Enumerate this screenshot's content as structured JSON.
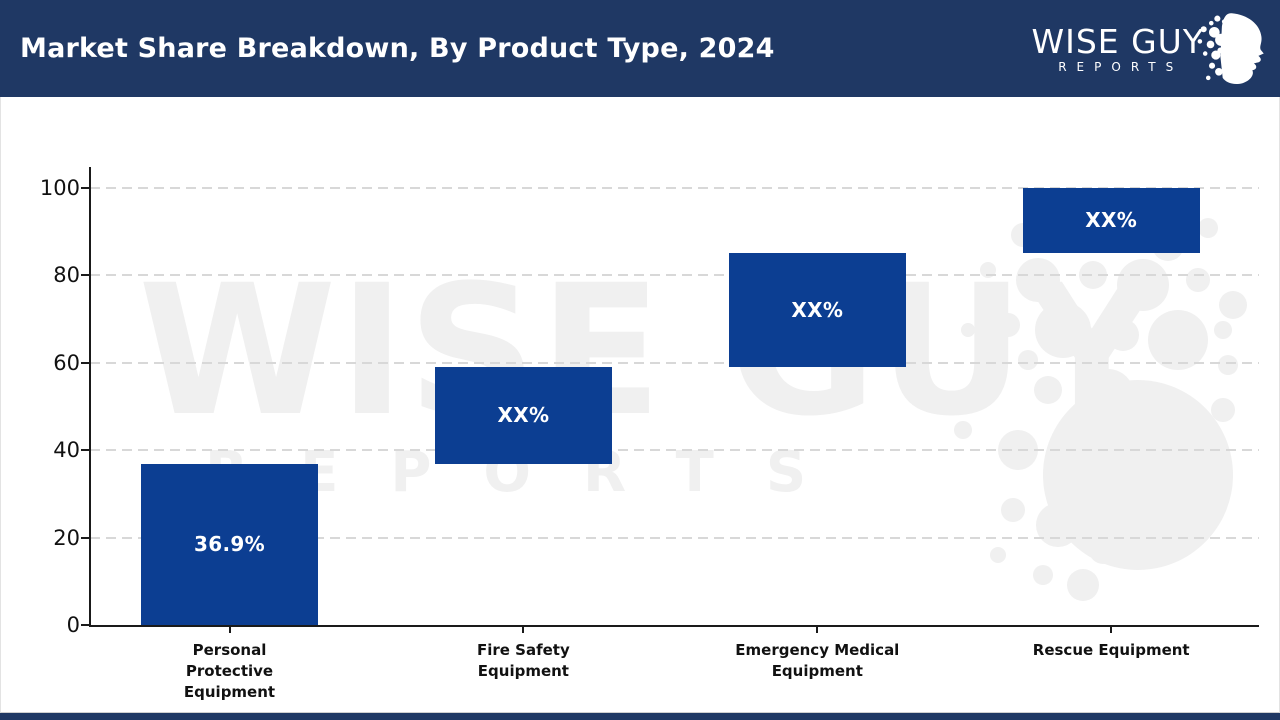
{
  "header": {
    "title": "Market Share Breakdown, By Product Type, 2024",
    "logo": {
      "line1": "WISE GUY",
      "line2": "REPORTS"
    }
  },
  "watermark": {
    "line1": "WISE GUY",
    "line2": "REPORTS"
  },
  "colors": {
    "header_bg": "#1f3864",
    "footer_bg": "#1f3864",
    "bar": "#0c3e92",
    "bar_label": "#ffffff",
    "gridline": "#d8d8d8",
    "axis": "#1a1a1a",
    "tick_label": "#111111",
    "watermark": "#f0f0f0"
  },
  "chart_data": {
    "type": "bar",
    "variant": "waterfall",
    "title": "Market Share Breakdown, By Product Type, 2024",
    "categories": [
      "Personal\nProtective\nEquipment",
      "Fire Safety\nEquipment",
      "Emergency Medical\nEquipment",
      "Rescue Equipment"
    ],
    "segments": [
      {
        "category": "Personal Protective Equipment",
        "start": 0,
        "end": 36.9,
        "label": "36.9%"
      },
      {
        "category": "Fire Safety Equipment",
        "start": 36.9,
        "end": 59,
        "label": "XX%"
      },
      {
        "category": "Emergency Medical Equipment",
        "start": 59,
        "end": 85,
        "label": "XX%"
      },
      {
        "category": "Rescue Equipment",
        "start": 85,
        "end": 100,
        "label": "XX%"
      }
    ],
    "xlabel": "",
    "ylabel": "",
    "ylim": [
      0,
      100
    ],
    "yticks": [
      0,
      20,
      40,
      60,
      80,
      100
    ],
    "grid": "horizontal-dashed",
    "legend": "none"
  }
}
